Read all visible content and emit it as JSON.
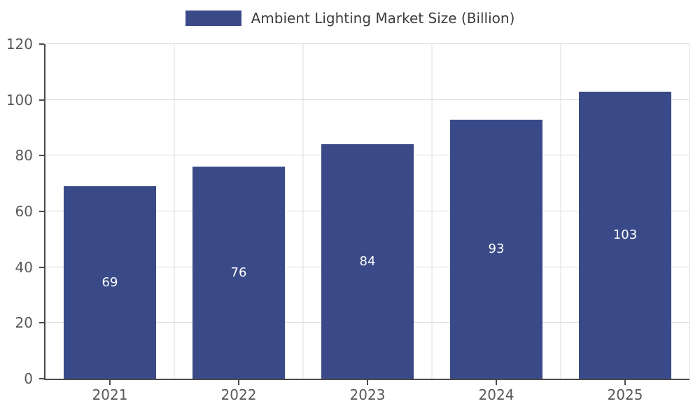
{
  "chart_data": {
    "type": "bar",
    "title": "Ambient Lighting Market Size (Billion)",
    "categories": [
      "2021",
      "2022",
      "2023",
      "2024",
      "2025"
    ],
    "values": [
      69,
      76,
      84,
      93,
      103
    ],
    "xlabel": "",
    "ylabel": "",
    "ylim": [
      0,
      120
    ],
    "yticks": [
      0,
      20,
      40,
      60,
      80,
      100,
      120
    ],
    "bar_color": "#3A4A88",
    "value_label_color": "#ffffff",
    "grid": true,
    "legend_position": "top-center"
  }
}
